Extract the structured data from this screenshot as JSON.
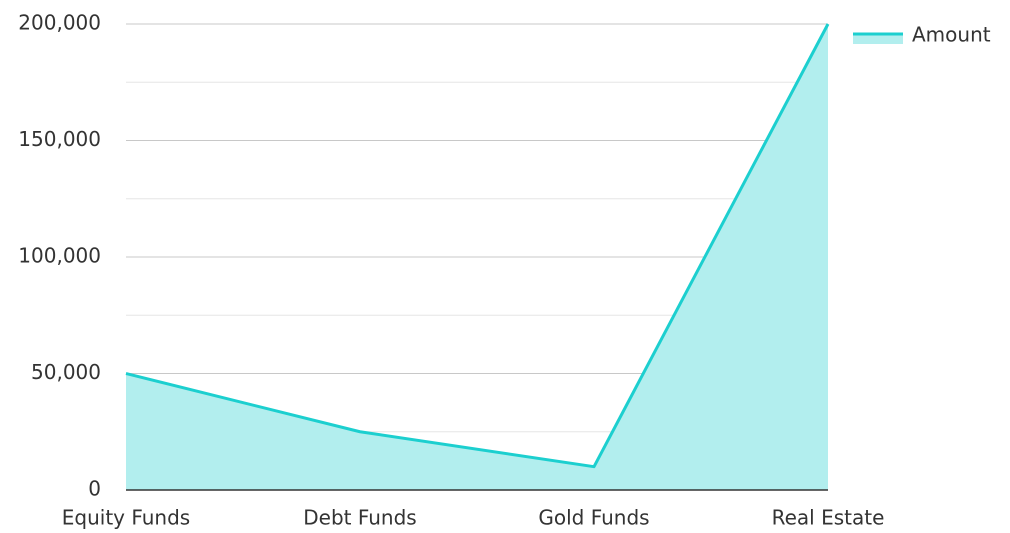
{
  "chart_data": {
    "type": "area",
    "categories": [
      "Equity Funds",
      "Debt Funds",
      "Gold Funds",
      "Real Estate"
    ],
    "series": [
      {
        "name": "Amount",
        "color": "#1ccfcf",
        "fill": "#b2eeee",
        "values": [
          50000,
          25000,
          10000,
          200000
        ]
      }
    ],
    "ylim": [
      0,
      200000
    ],
    "yticks": [
      0,
      {
        "value": 50000,
        "label": "50,000"
      },
      {
        "value": 100000,
        "label": "100,000"
      },
      {
        "value": 150000,
        "label": "150,000"
      },
      {
        "value": 200000,
        "label": "200,000"
      }
    ],
    "minor_yticks": [
      25000,
      75000,
      125000,
      175000
    ],
    "grid": true,
    "legend": "top-right"
  }
}
